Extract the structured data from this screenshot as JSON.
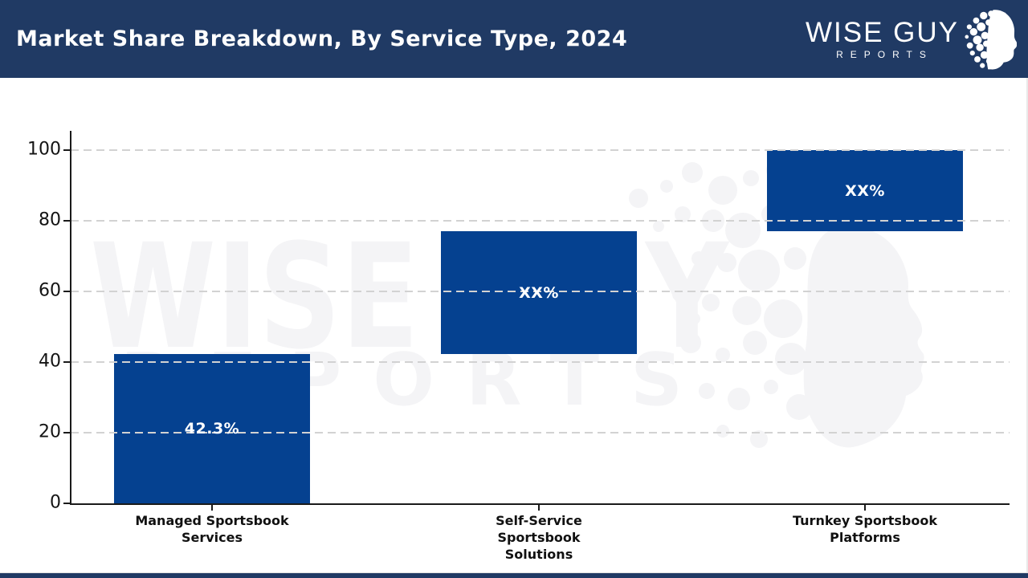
{
  "header": {
    "title": "Market Share Breakdown, By Service Type, 2024",
    "logo": {
      "brand": "WISE GUY",
      "sub": "REPORTS"
    }
  },
  "watermark": {
    "line1": "WISE GUY",
    "line2": "REPORTS"
  },
  "colors": {
    "header_bg": "#203a64",
    "footer_bg": "#203a64",
    "bar": "#054190",
    "grid": "#d2d2d2",
    "watermark": "#f4f4f6",
    "bar_label": "#ffffff",
    "axis": "#1a1a1a"
  },
  "chart_data": {
    "type": "bar",
    "subtype": "waterfall",
    "title": "Market Share Breakdown, By Service Type, 2024",
    "categories": [
      "Managed Sportsbook\nServices",
      "Self-Service\nSportsbook\nSolutions",
      "Turnkey Sportsbook\nPlatforms"
    ],
    "segments": [
      {
        "category": "Managed Sportsbook Services",
        "start": 0,
        "end": 42.3,
        "label": "42.3%"
      },
      {
        "category": "Self-Service Sportsbook Solutions",
        "start": 42.3,
        "end": 77,
        "label": "XX%"
      },
      {
        "category": "Turnkey Sportsbook Platforms",
        "start": 77,
        "end": 100,
        "label": "XX%"
      }
    ],
    "yticks": [
      0,
      20,
      40,
      60,
      80,
      100
    ],
    "ylim": [
      0,
      100
    ],
    "xlabel": "",
    "ylabel": "",
    "legend": "none",
    "grid": "horizontal-dashed",
    "bar_color": "#054190",
    "label_color": "#ffffff"
  }
}
